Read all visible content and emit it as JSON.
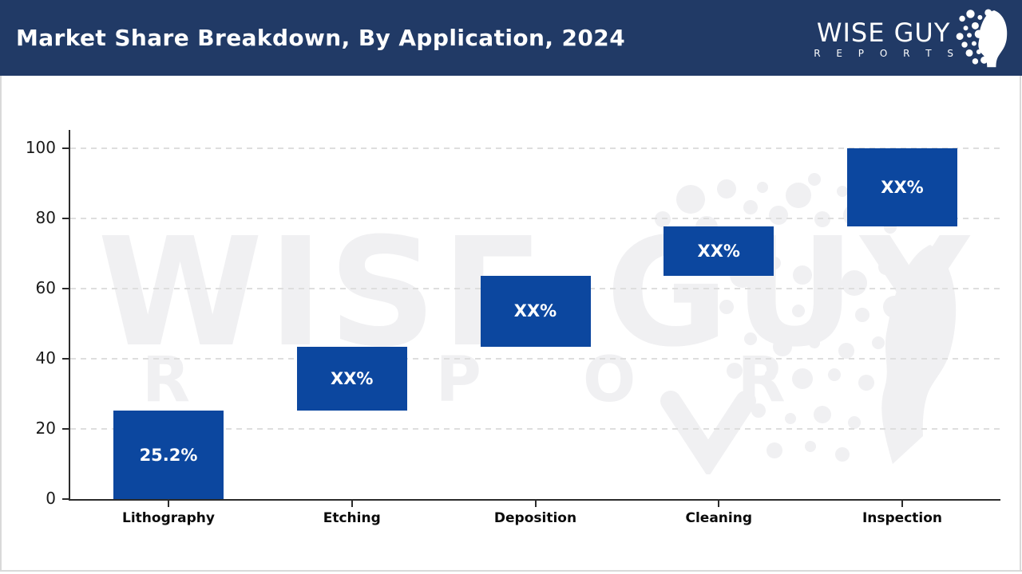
{
  "header": {
    "title": "Market Share Breakdown, By Application, 2024",
    "bg_color": "#213a66",
    "logo": {
      "line1": "WISE GUY",
      "line2": "R E P O R T S"
    }
  },
  "watermark": {
    "line1": "WISE GUY",
    "line2": "R E P O R T S",
    "color": "#f0f0f2"
  },
  "colors": {
    "bar": "#0c479f",
    "bar_label": "#ffffff",
    "grid": "#dedede",
    "axis": "#2b2b2b",
    "header_bg": "#213a66"
  },
  "chart_data": {
    "type": "bar",
    "subtype": "waterfall",
    "title": "Market Share Breakdown, By Application, 2024",
    "xlabel": "",
    "ylabel": "",
    "categories": [
      "Lithography",
      "Etching",
      "Deposition",
      "Cleaning",
      "Inspection"
    ],
    "segments": [
      {
        "category": "Lithography",
        "start": 0,
        "end": 25.2,
        "label": "25.2%"
      },
      {
        "category": "Etching",
        "start": 25.2,
        "end": 43.5,
        "label": "XX%"
      },
      {
        "category": "Deposition",
        "start": 43.5,
        "end": 63.7,
        "label": "XX%"
      },
      {
        "category": "Cleaning",
        "start": 63.7,
        "end": 77.8,
        "label": "XX%"
      },
      {
        "category": "Inspection",
        "start": 77.8,
        "end": 100,
        "label": "XX%"
      }
    ],
    "yticks": [
      0,
      20,
      40,
      60,
      80,
      100
    ],
    "ylim": [
      0,
      105
    ],
    "grid": "horizontal dashed",
    "legend_position": "none"
  }
}
